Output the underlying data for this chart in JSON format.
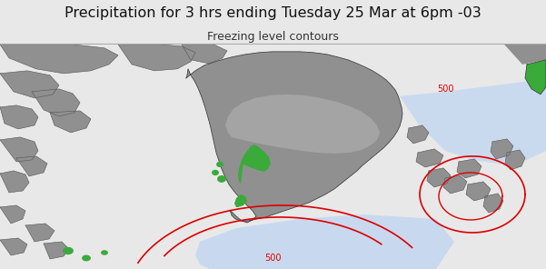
{
  "title": "Precipitation for 3 hrs ending Tuesday 25 Mar at 6pm -03",
  "subtitle": "Freezing level contours",
  "title_fontsize": 11.5,
  "subtitle_fontsize": 9,
  "title_color": "#111111",
  "subtitle_color": "#333333",
  "header_bg": "#e8e8e8",
  "ocean_color": "#b0c8e0",
  "land_gray": "#909090",
  "land_dark_gray": "#787878",
  "land_green": "#3aaa3a",
  "contour_color": "#dd0000",
  "freeze_blue": "#c5d8f0",
  "label_500": "500"
}
